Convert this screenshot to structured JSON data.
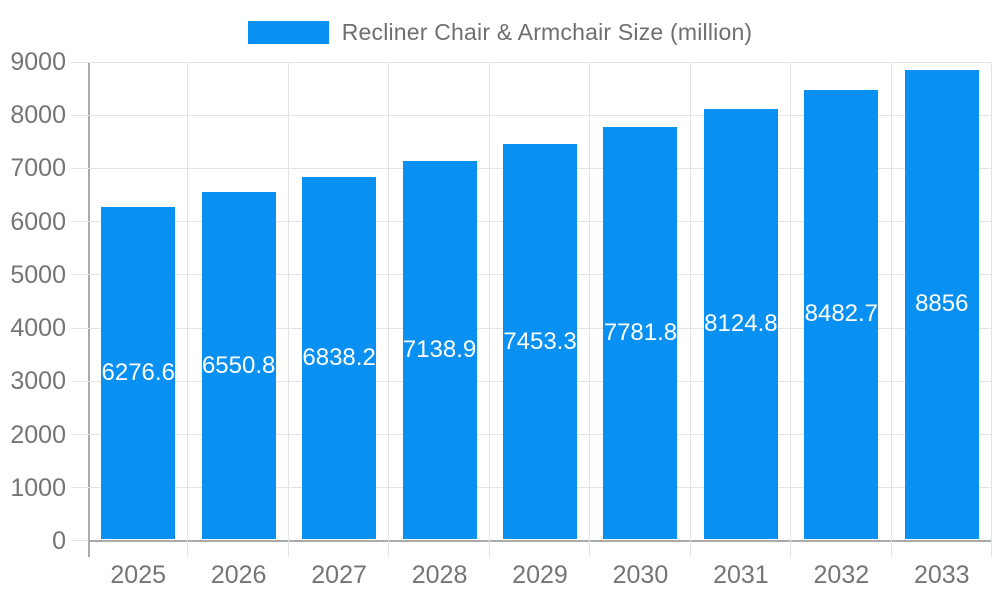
{
  "chart_data": {
    "type": "bar",
    "title": "Recliner Chair & Armchair Size (million)",
    "categories": [
      "2025",
      "2026",
      "2027",
      "2028",
      "2029",
      "2030",
      "2031",
      "2032",
      "2033"
    ],
    "values": [
      6276.6,
      6550.8,
      6838.2,
      7138.9,
      7453.3,
      7781.8,
      8124.8,
      8482.7,
      8856
    ],
    "xlabel": "",
    "ylabel": "",
    "ylim": [
      0,
      9000
    ],
    "y_ticks": [
      0,
      1000,
      2000,
      3000,
      4000,
      5000,
      6000,
      7000,
      8000,
      9000
    ],
    "grid": true,
    "legend_position": "top-center",
    "value_labels_inside_bars": true,
    "colors": {
      "bar": "#0890F3",
      "grid": "#E4E4E4",
      "axis": "#AAAAAA",
      "tick_label": "#757575",
      "title": "#6F6F6F",
      "value_label": "#FFFFFF",
      "background": "#FFFFFF"
    }
  }
}
